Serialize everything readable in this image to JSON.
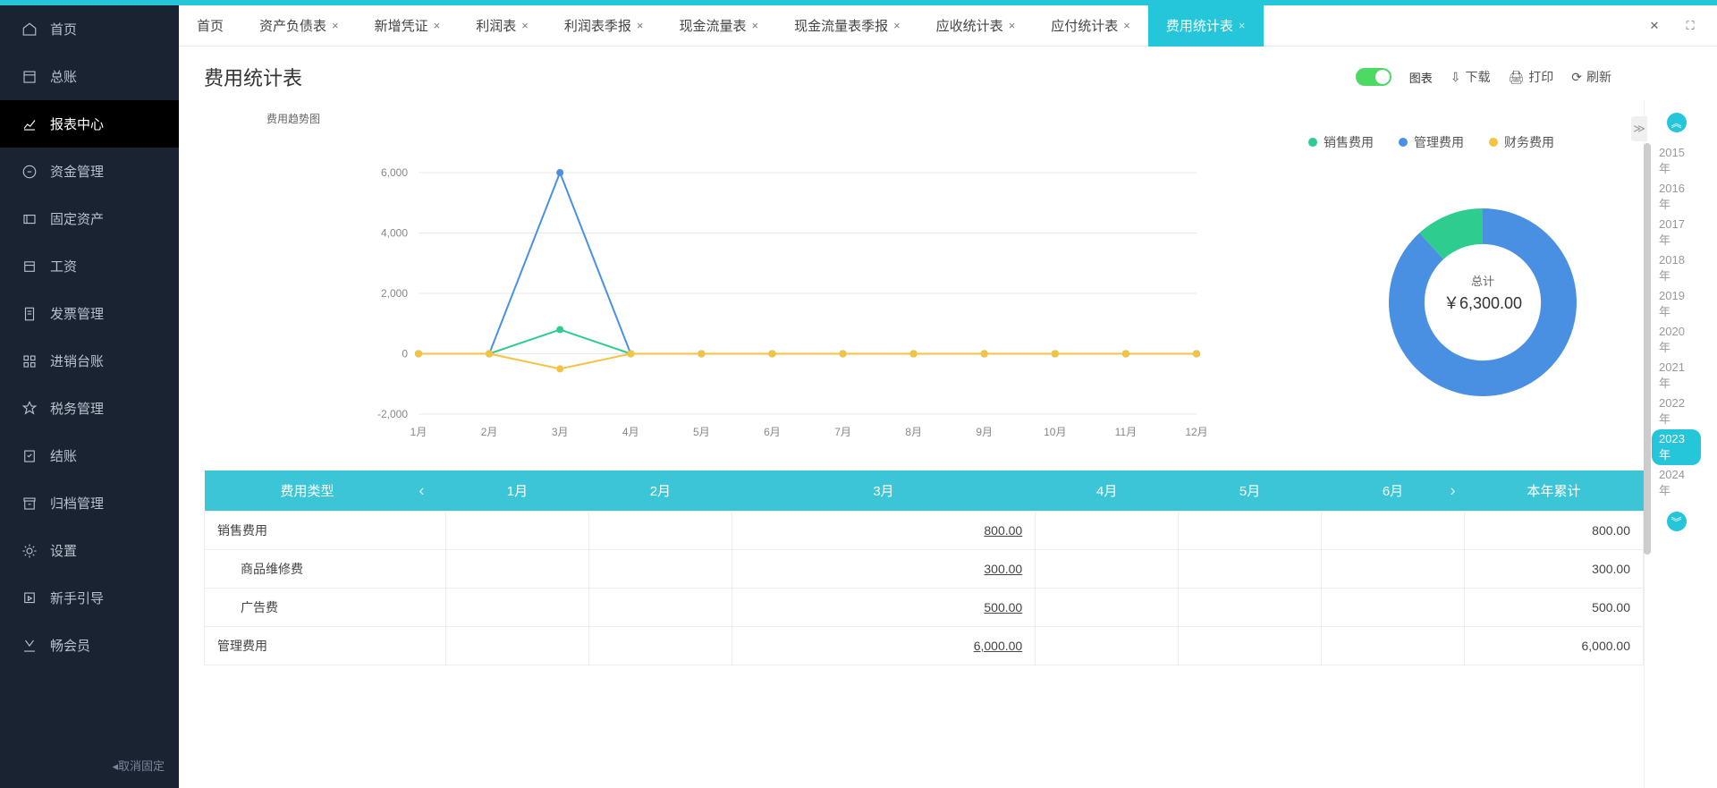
{
  "sidebar": {
    "items": [
      {
        "label": "首页",
        "icon": "home"
      },
      {
        "label": "总账",
        "icon": "ledger"
      },
      {
        "label": "报表中心",
        "icon": "chart",
        "active": true
      },
      {
        "label": "资金管理",
        "icon": "money"
      },
      {
        "label": "固定资产",
        "icon": "asset"
      },
      {
        "label": "工资",
        "icon": "salary"
      },
      {
        "label": "发票管理",
        "icon": "invoice"
      },
      {
        "label": "进销台账",
        "icon": "inventory"
      },
      {
        "label": "税务管理",
        "icon": "tax"
      },
      {
        "label": "结账",
        "icon": "close"
      },
      {
        "label": "归档管理",
        "icon": "archive"
      },
      {
        "label": "设置",
        "icon": "settings"
      },
      {
        "label": "新手引导",
        "icon": "guide"
      },
      {
        "label": "畅会员",
        "icon": "vip"
      }
    ],
    "footer": "◂取消固定"
  },
  "tabs": {
    "items": [
      {
        "label": "首页",
        "closable": false
      },
      {
        "label": "资产负债表",
        "closable": true
      },
      {
        "label": "新增凭证",
        "closable": true
      },
      {
        "label": "利润表",
        "closable": true
      },
      {
        "label": "利润表季报",
        "closable": true
      },
      {
        "label": "现金流量表",
        "closable": true
      },
      {
        "label": "现金流量表季报",
        "closable": true
      },
      {
        "label": "应收统计表",
        "closable": true
      },
      {
        "label": "应付统计表",
        "closable": true
      },
      {
        "label": "费用统计表",
        "closable": true,
        "active": true
      }
    ]
  },
  "page": {
    "title": "费用统计表",
    "actions": {
      "chart": "图表",
      "download": "下载",
      "print": "打印",
      "refresh": "刷新"
    }
  },
  "chart": {
    "title": "费用趋势图",
    "type": "line",
    "legend": [
      {
        "label": "销售费用",
        "color": "#2ecc8f"
      },
      {
        "label": "管理费用",
        "color": "#4a90e2"
      },
      {
        "label": "财务费用",
        "color": "#f5c242"
      }
    ],
    "xlabels": [
      "1月",
      "2月",
      "3月",
      "4月",
      "5月",
      "6月",
      "7月",
      "8月",
      "9月",
      "10月",
      "11月",
      "12月"
    ],
    "yticks": [
      -2000,
      0,
      2000,
      4000,
      6000
    ],
    "ylim": [
      -2000,
      6000
    ],
    "series": {
      "sales": [
        0,
        0,
        800,
        0,
        0,
        0,
        0,
        0,
        0,
        0,
        0,
        0
      ],
      "admin": [
        0,
        0,
        6000,
        0,
        0,
        0,
        0,
        0,
        0,
        0,
        0,
        0
      ],
      "finance": [
        0,
        0,
        -500,
        0,
        0,
        0,
        0,
        0,
        0,
        0,
        0,
        0
      ]
    },
    "grid_color": "#e8e8e8",
    "marker_radius": 4
  },
  "donut": {
    "center_label": "总计",
    "center_value": "￥6,300.00",
    "slices": [
      {
        "value": 800,
        "color": "#2ecc8f"
      },
      {
        "value": 6000,
        "color": "#4a90e2"
      },
      {
        "value": -500,
        "color": "#f5c242"
      }
    ],
    "inner_ratio": 0.62
  },
  "table": {
    "header_cat": "费用类型",
    "header_total": "本年累计",
    "months": [
      "1月",
      "2月",
      "3月",
      "4月",
      "5月",
      "6月"
    ],
    "rows": [
      {
        "cat": "销售费用",
        "sub": false,
        "m": [
          "",
          "",
          "800.00",
          "",
          "",
          ""
        ],
        "total": "800.00"
      },
      {
        "cat": "商品维修费",
        "sub": true,
        "m": [
          "",
          "",
          "300.00",
          "",
          "",
          ""
        ],
        "total": "300.00"
      },
      {
        "cat": "广告费",
        "sub": true,
        "m": [
          "",
          "",
          "500.00",
          "",
          "",
          ""
        ],
        "total": "500.00"
      },
      {
        "cat": "管理费用",
        "sub": false,
        "m": [
          "",
          "",
          "6,000.00",
          "",
          "",
          ""
        ],
        "total": "6,000.00"
      }
    ],
    "header_bg": "#3bc5d6"
  },
  "years": {
    "list": [
      "2015年",
      "2016年",
      "2017年",
      "2018年",
      "2019年",
      "2020年",
      "2021年",
      "2022年",
      "2023年",
      "2024年"
    ],
    "active": "2023年"
  }
}
